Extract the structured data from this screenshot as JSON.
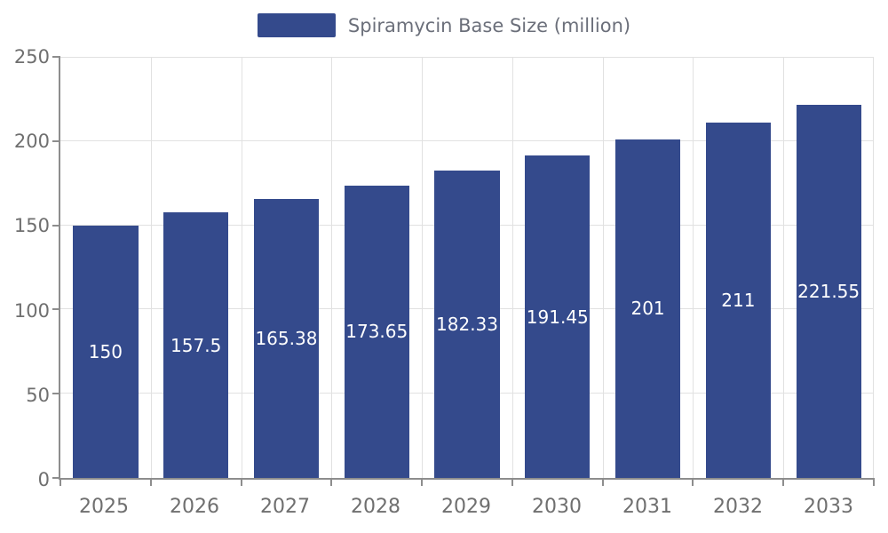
{
  "legend": {
    "label": "Spiramycin Base Size (million)"
  },
  "chart_data": {
    "type": "bar",
    "title": "Spiramycin Base Size (million)",
    "categories": [
      "2025",
      "2026",
      "2027",
      "2028",
      "2029",
      "2030",
      "2031",
      "2032",
      "2033"
    ],
    "values": [
      150,
      157.5,
      165.38,
      173.65,
      182.33,
      191.45,
      201,
      211,
      221.55
    ],
    "xlabel": "",
    "ylabel": "",
    "ylim": [
      0,
      250
    ],
    "yticks": [
      0,
      50,
      100,
      150,
      200,
      250
    ],
    "bar_color": "#344a8c",
    "label_color": "#ffffff",
    "grid": true,
    "legend_position": "top"
  }
}
